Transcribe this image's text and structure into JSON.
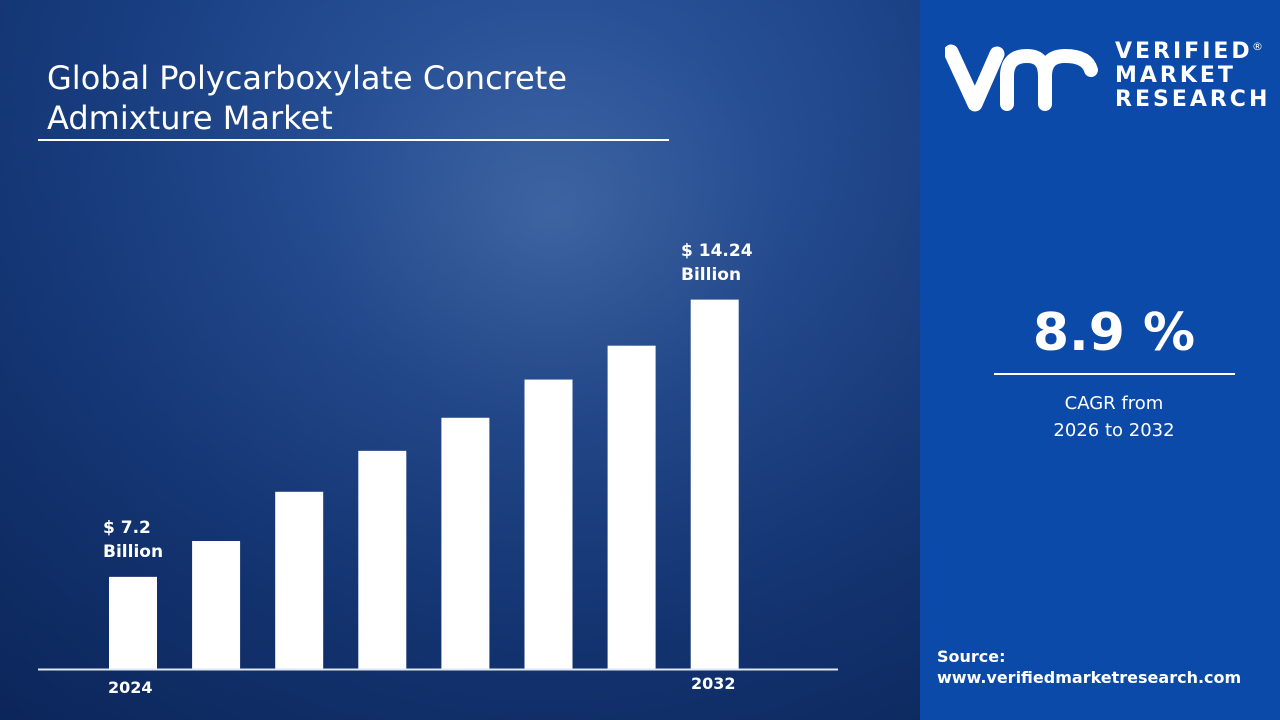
{
  "title_line1": "Global Polycarboxylate Concrete",
  "title_line2": "Admixture Market",
  "brand": {
    "line1": "VERIFIED",
    "line2": "MARKET",
    "line3": "RESEARCH",
    "registered": "®",
    "color": "#0b4aa8"
  },
  "cagr": {
    "value": "8.9 %",
    "label_line1": "CAGR from",
    "label_line2": "2026 to 2032"
  },
  "source": {
    "label": "Source:",
    "url": "www.verifiedmarketresearch.com"
  },
  "chart_data": {
    "type": "bar",
    "categories": [
      "2024",
      "",
      "",
      "",
      "",
      "",
      "",
      "2032"
    ],
    "values": [
      7.2,
      8.11,
      9.36,
      10.4,
      11.24,
      12.21,
      13.07,
      14.24
    ],
    "ylim": [
      4.86,
      15.5
    ],
    "bar_color": "#ffffff",
    "first_label": {
      "line1": "$ 7.2",
      "line2": "Billion"
    },
    "last_label": {
      "line1": "$ 14.24",
      "line2": "Billion"
    },
    "x_tick_first": "2024",
    "x_tick_last": "2032",
    "grid": false
  }
}
